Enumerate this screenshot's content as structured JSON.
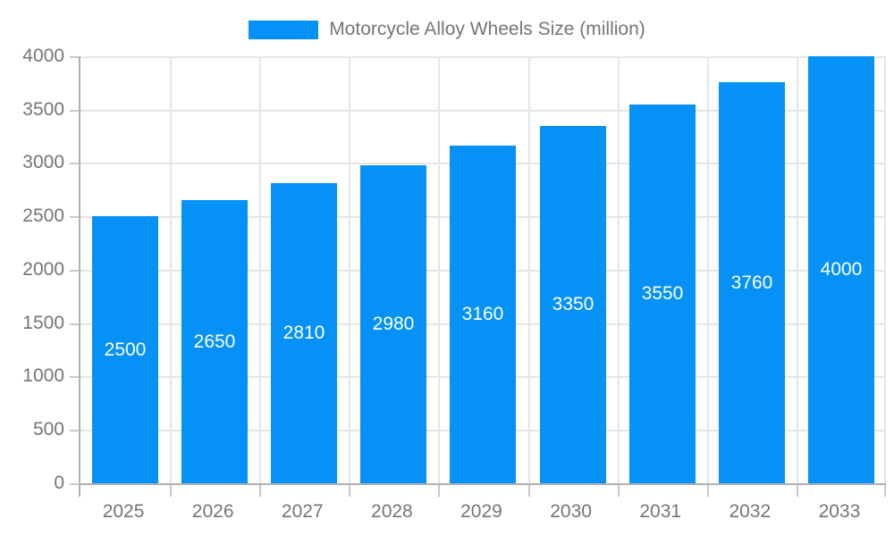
{
  "chart_data": {
    "type": "bar",
    "legend_label": "Motorcycle Alloy Wheels Size (million)",
    "legend_position": "top-center",
    "categories": [
      "2025",
      "2026",
      "2027",
      "2028",
      "2029",
      "2030",
      "2031",
      "2032",
      "2033"
    ],
    "values": [
      2500,
      2650,
      2810,
      2980,
      3160,
      3350,
      3550,
      3760,
      4000
    ],
    "yticks": [
      0,
      500,
      1000,
      1500,
      2000,
      2500,
      3000,
      3500,
      4000
    ],
    "ylim": [
      0,
      4000
    ],
    "grid": true,
    "bar_color": "#0591f5",
    "value_label_color": "#ffffff",
    "axis_text_color": "#757575",
    "axis_line_color": "#b0b0b0",
    "grid_color": "#e6e6e6",
    "background": "#ffffff"
  }
}
